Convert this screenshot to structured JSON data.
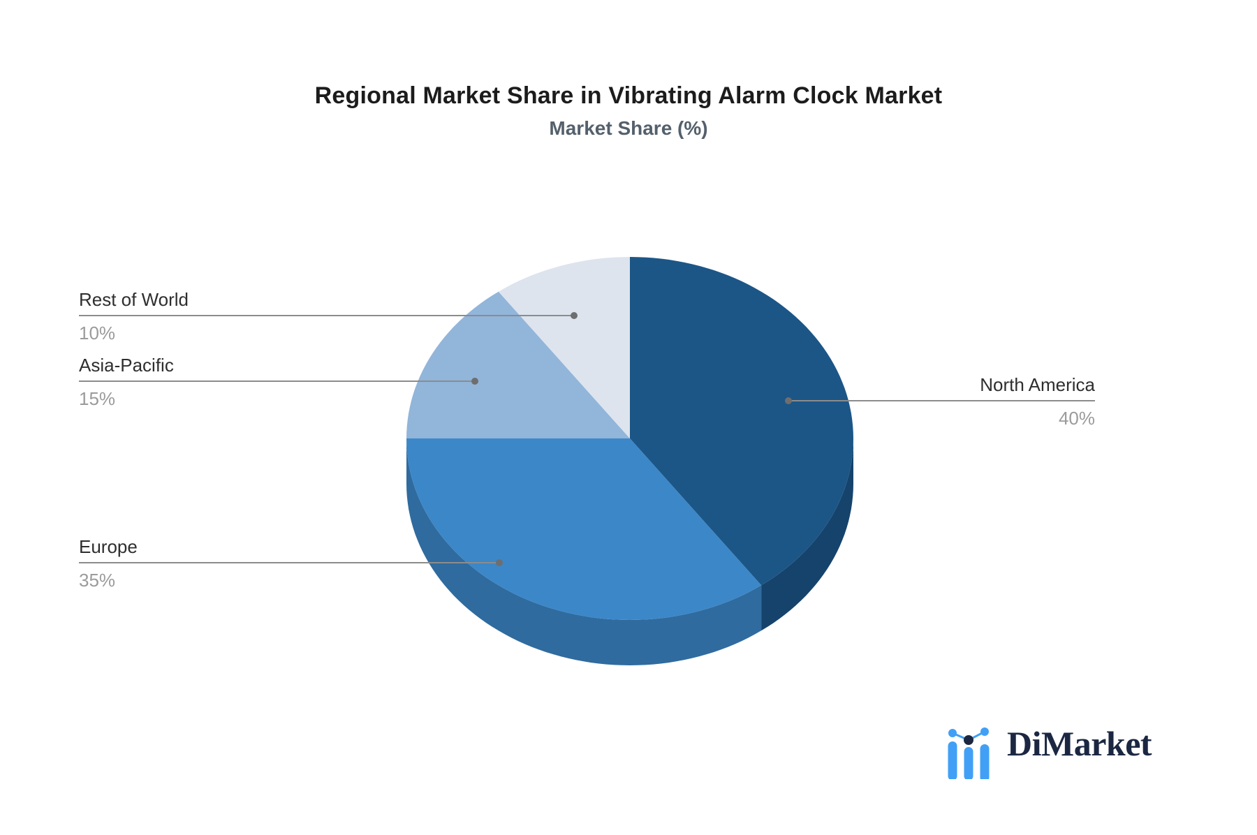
{
  "header": {
    "title": "Regional Market Share in Vibrating Alarm Clock Market",
    "subtitle": "Market Share (%)"
  },
  "chart_data": {
    "type": "pie",
    "title": "Regional Market Share in Vibrating Alarm Clock Market",
    "subtitle": "Market Share (%)",
    "unit": "%",
    "style": "3d-pie",
    "start_angle_deg": 0,
    "direction": "clockwise",
    "legend_position": "callouts-with-leader-lines",
    "slices": [
      {
        "label": "North America",
        "value": 40,
        "display": "40%",
        "color": "#1C5687",
        "side_color": "#15436B"
      },
      {
        "label": "Europe",
        "value": 35,
        "display": "35%",
        "color": "#3C87C8",
        "side_color": "#2F6B9E"
      },
      {
        "label": "Asia-Pacific",
        "value": 15,
        "display": "15%",
        "color": "#92B5DA",
        "side_color": "#74909F"
      },
      {
        "label": "Rest of World",
        "value": 10,
        "display": "10%",
        "color": "#DDE4EE",
        "side_color": "#B0B6BE"
      }
    ]
  },
  "branding": {
    "name": "DiMarket",
    "icon": "bar-line-chart-icon",
    "text_color": "#1B2742",
    "icon_bar_color": "#41A0F5",
    "icon_dot_color": "#1B2742"
  },
  "colors": {
    "background": "#FFFFFF",
    "title": "#1C1C1C",
    "subtitle": "#54606B",
    "callout_label": "#2E2E2E",
    "callout_value": "#9B9B9B",
    "leader_line": "#8C8C8C",
    "leader_dot": "#6E6E6E"
  }
}
